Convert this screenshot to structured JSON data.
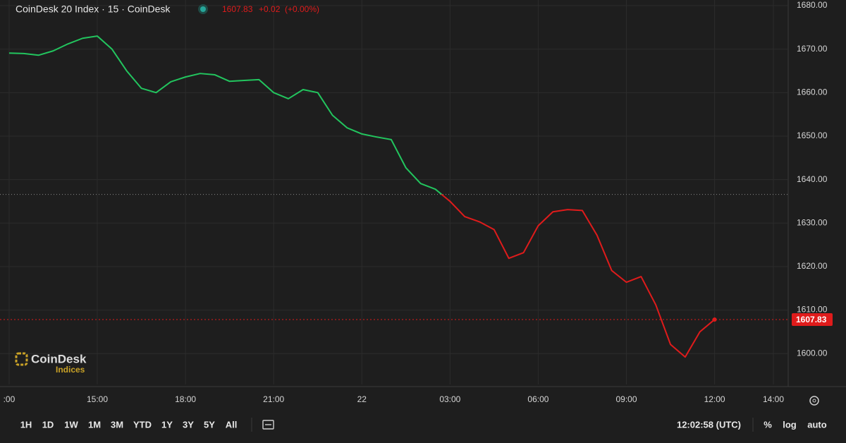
{
  "chart_data": {
    "type": "line",
    "title": "CoinDesk 20 Index · 15 · CoinDesk",
    "header_price": "1607.83",
    "header_change": "+0.02",
    "header_change_pct": "(+0.00%)",
    "x": [
      12,
      12.5,
      13,
      13.5,
      14,
      14.5,
      15,
      15.5,
      16,
      16.5,
      17,
      17.5,
      18,
      18.5,
      19,
      19.5,
      20,
      20.5,
      21,
      21.5,
      22,
      22.5,
      23,
      23.5,
      24,
      24.5,
      25,
      25.5,
      26,
      26.5,
      27,
      27.5,
      28,
      28.5,
      29,
      29.5,
      30,
      30.5,
      31,
      31.5,
      32,
      32.5,
      33,
      33.5,
      34,
      34.5,
      35,
      35.5,
      36
    ],
    "values": [
      1669.1,
      1669.0,
      1668.6,
      1669.6,
      1671.2,
      1672.5,
      1673.0,
      1670.0,
      1665.0,
      1661.0,
      1660.0,
      1662.5,
      1663.6,
      1664.4,
      1664.1,
      1662.6,
      1662.8,
      1663.0,
      1660.0,
      1658.6,
      1660.7,
      1660.0,
      1654.8,
      1651.9,
      1650.5,
      1649.8,
      1649.2,
      1642.7,
      1639.1,
      1637.8,
      1635.0,
      1631.5,
      1630.3,
      1628.5,
      1621.9,
      1623.2,
      1629.4,
      1632.6,
      1633.1,
      1632.9,
      1627.2,
      1619.1,
      1616.4,
      1617.7,
      1611.2,
      1602.1,
      1599.2,
      1605.0,
      1607.83
    ],
    "baseline": 1636.6,
    "last_price": 1607.83,
    "color_above": "#22c55e",
    "color_below": "#e01b1b",
    "xlim": [
      11.69,
      38.48
    ],
    "ylim": [
      1592.9,
      1681.3
    ],
    "xticks": [
      {
        "value": 12,
        "label": ":00"
      },
      {
        "value": 15,
        "label": "15:00"
      },
      {
        "value": 18,
        "label": "18:00"
      },
      {
        "value": 21,
        "label": "21:00"
      },
      {
        "value": 24,
        "label": "22"
      },
      {
        "value": 27,
        "label": "03:00"
      },
      {
        "value": 30,
        "label": "06:00"
      },
      {
        "value": 33,
        "label": "09:00"
      },
      {
        "value": 36,
        "label": "12:00"
      },
      {
        "value": 38,
        "label": "14:00"
      }
    ],
    "yticks": [
      {
        "value": 1600,
        "label": "1600.00"
      },
      {
        "value": 1610,
        "label": "1610.00"
      },
      {
        "value": 1620,
        "label": "1620.00"
      },
      {
        "value": 1630,
        "label": "1630.00"
      },
      {
        "value": 1640,
        "label": "1640.00"
      },
      {
        "value": 1650,
        "label": "1650.00"
      },
      {
        "value": 1660,
        "label": "1660.00"
      },
      {
        "value": 1670,
        "label": "1670.00"
      },
      {
        "value": 1680,
        "label": "1680.00"
      }
    ],
    "grid": true,
    "logo": {
      "name": "CoinDesk",
      "sub": "Indices"
    }
  },
  "toolbar": {
    "ranges": [
      "1H",
      "1D",
      "1W",
      "1M",
      "3M",
      "YTD",
      "1Y",
      "3Y",
      "5Y",
      "All"
    ],
    "clock": "12:02:58 (UTC)",
    "options": [
      "%",
      "log",
      "auto"
    ]
  }
}
